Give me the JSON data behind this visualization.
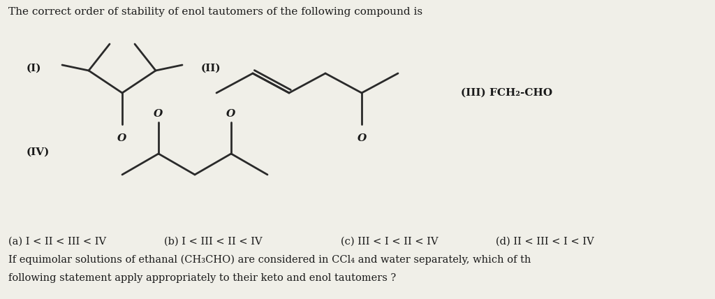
{
  "title": "The correct order of stability of enol tautomers of the following compound is",
  "background_color": "#f0efe8",
  "text_color": "#1a1a1a",
  "options": [
    "(a) I < II < III < IV",
    "(b) I < III < II < IV",
    "(c) III < I < II < IV",
    "(d) II < III < I < IV"
  ],
  "bottom_text_line1": "If equimolar solutions of ethanal (CH₃CHO) are considered in CCl₄ and water separately, which of th",
  "bottom_text_line2": "following statement apply appropriately to their keto and enol tautomers ?",
  "label_I": "(I)",
  "label_II": "(II)",
  "label_III": "(III) FCH₂-CHO",
  "label_IV": "(IV)"
}
